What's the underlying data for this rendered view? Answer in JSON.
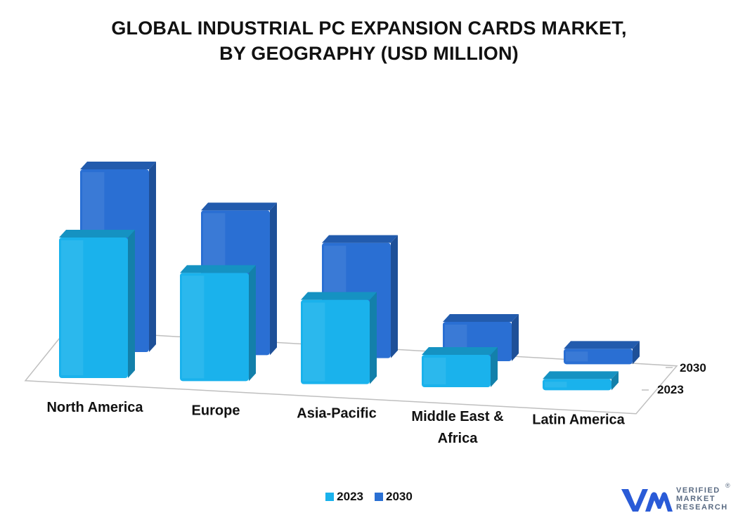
{
  "title_line1": "GLOBAL INDUSTRIAL PC EXPANSION CARDS MARKET,",
  "title_line2": "BY GEOGRAPHY (USD MILLION)",
  "chart_data": {
    "type": "bar",
    "categories": [
      "North America",
      "Europe",
      "Asia-Pacific",
      "Middle East & Africa",
      "Latin America"
    ],
    "category_lines": [
      [
        "North America"
      ],
      [
        "Europe"
      ],
      [
        "Asia-Pacific"
      ],
      [
        "Middle East &",
        "Africa"
      ],
      [
        "Latin America"
      ]
    ],
    "series": [
      {
        "name": "2023",
        "values": [
          100,
          77,
          60,
          23,
          8
        ],
        "color": "#1ab2ec"
      },
      {
        "name": "2030",
        "values": [
          130,
          103,
          82,
          28,
          11
        ],
        "color": "#2a6fd3"
      }
    ],
    "depth_labels": [
      "2030",
      "2023"
    ],
    "ylim": [
      0,
      140
    ],
    "grid": false,
    "legend_position": "bottom"
  },
  "legend": [
    {
      "label": "2023",
      "color": "#1ab2ec"
    },
    {
      "label": "2030",
      "color": "#2a6fd3"
    }
  ],
  "logo": {
    "line1": "VERIFIED",
    "line2": "MARKET",
    "line3": "RESEARCH",
    "registered": "®",
    "color": "#2a5bd7"
  }
}
